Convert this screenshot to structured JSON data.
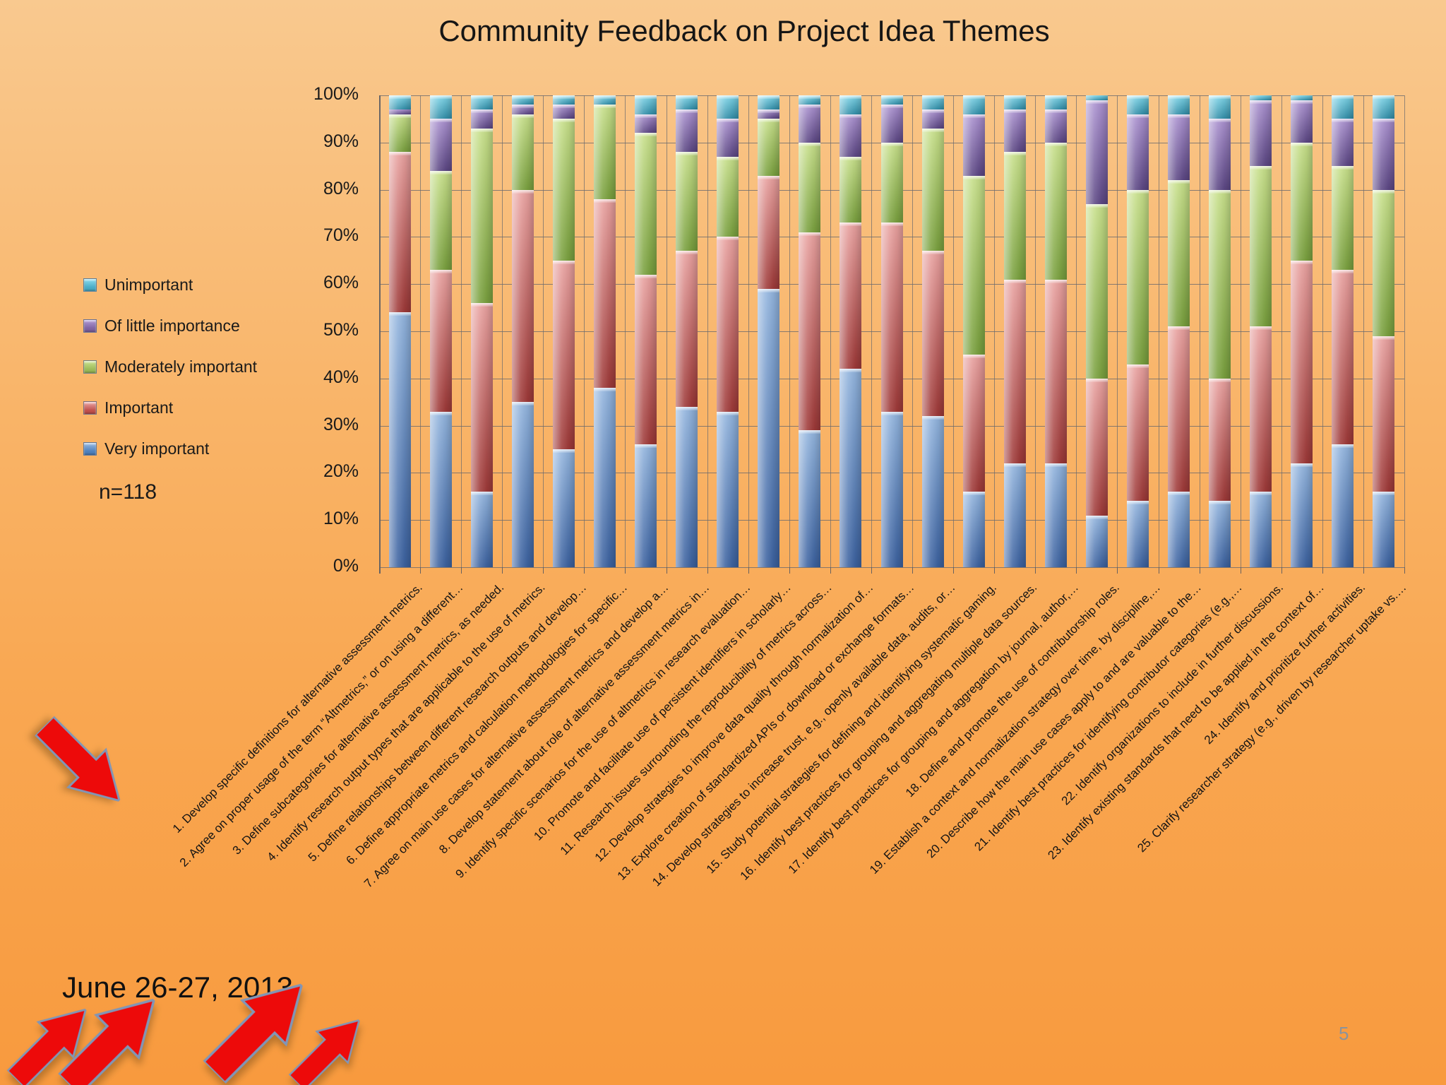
{
  "slide": {
    "title": "Community Feedback on Project Idea Themes",
    "n_label": "n=118",
    "date_label": "June 26-27, 2013",
    "page_number": "5",
    "background_top": "#f9c98f",
    "background_bottom": "#f89a3e"
  },
  "legend": {
    "position": "left",
    "items": [
      {
        "label": "Unimportant",
        "color": "#4BACC6",
        "color_light": "#8ddcee"
      },
      {
        "label": "Of little importance",
        "color": "#8064A2",
        "color_light": "#b29bd6"
      },
      {
        "label": "Moderately important",
        "color": "#9BBB59",
        "color_light": "#cce390"
      },
      {
        "label": "Important",
        "color": "#C0504D",
        "color_light": "#eba7a5"
      },
      {
        "label": "Very important",
        "color": "#4F81BD",
        "color_light": "#9abbe2"
      }
    ]
  },
  "chart_data": {
    "type": "bar",
    "stacked": true,
    "units": "percent",
    "title": "Community Feedback on Project Idea Themes",
    "xlabel": "",
    "ylabel": "",
    "ylim": [
      0,
      100
    ],
    "grid": true,
    "legend_position": "left",
    "sample_size": "n=118",
    "yticks": [
      "0%",
      "10%",
      "20%",
      "30%",
      "40%",
      "50%",
      "60%",
      "70%",
      "80%",
      "90%",
      "100%"
    ],
    "categories": [
      "1. Develop specific definitions for alternative assessment metrics.",
      "2. Agree on proper usage of the term “Altmetrics,” or on using a different…",
      "3. Define subcategories for alternative assessment metrics, as needed.",
      "4. Identify research output types that are applicable to the use of metrics.",
      "5. Define relationships between different research outputs and develop…",
      "6. Define appropriate metrics and calculation methodologies for specific…",
      "7. Agree on main use cases for alternative assessment metrics and develop a…",
      "8. Develop statement about role of alternative assessment metrics in…",
      "9. Identify specific scenarios for the use of altmetrics in research evaluation…",
      "10. Promote and facilitate use of persistent identifiers in scholarly…",
      "11. Research issues surrounding the reproducibility of metrics across…",
      "12. Develop strategies to improve data quality through normalization of…",
      "13. Explore creation of standardized APIs or download or exchange formats…",
      "14. Develop strategies to increase trust, e.g., openly available data, audits, or…",
      "15. Study potential strategies for defining and identifying systematic gaming.",
      "16. Identify best practices for grouping and aggregating multiple data sources.",
      "17. Identify best practices for grouping and aggregation by journal, author,…",
      "18. Define and promote the use of contributorship roles.",
      "19. Establish a context and normalization strategy over time, by discipline,…",
      "20. Describe how the main use cases apply to and are valuable to the…",
      "21. Identify best practices for identifying contributor categories (e.g.,…",
      "22. Identify organizations to include in further discussions.",
      "23. Identify existing standards that need to be applied in the context of…",
      "24. Identify and prioritize further activities.",
      "25. Clarify researcher strategy (e.g., driven by researcher uptake vs.…"
    ],
    "series": [
      {
        "name": "Very important",
        "color": "#4F81BD",
        "gradient": [
          "#93b5de",
          "#3c62a0"
        ],
        "values": [
          54,
          33,
          16,
          35,
          25,
          38,
          26,
          34,
          33,
          59,
          29,
          42,
          33,
          32,
          16,
          22,
          22,
          11,
          14,
          16,
          14,
          16,
          22,
          26,
          16
        ]
      },
      {
        "name": "Important",
        "color": "#C0504D",
        "gradient": [
          "#e9a2a0",
          "#9e3938"
        ],
        "values": [
          34,
          30,
          40,
          45,
          40,
          40,
          36,
          33,
          37,
          24,
          42,
          31,
          40,
          35,
          29,
          39,
          39,
          29,
          29,
          35,
          26,
          35,
          43,
          37,
          33
        ]
      },
      {
        "name": "Moderately important",
        "color": "#9BBB59",
        "gradient": [
          "#c8e08b",
          "#79a03e"
        ],
        "values": [
          8,
          21,
          37,
          16,
          30,
          20,
          30,
          21,
          17,
          12,
          19,
          14,
          17,
          26,
          38,
          27,
          29,
          37,
          37,
          31,
          40,
          34,
          25,
          22,
          31
        ]
      },
      {
        "name": "Of little importance",
        "color": "#8064A2",
        "gradient": [
          "#ac93d1",
          "#5c4784"
        ],
        "values": [
          1,
          11,
          4,
          2,
          3,
          0,
          4,
          9,
          8,
          2,
          8,
          9,
          8,
          4,
          13,
          9,
          7,
          22,
          16,
          14,
          15,
          14,
          9,
          10,
          15
        ]
      },
      {
        "name": "Unimportant",
        "color": "#4BACC6",
        "gradient": [
          "#82d8eb",
          "#338fa9"
        ],
        "values": [
          3,
          5,
          3,
          2,
          2,
          2,
          4,
          3,
          5,
          3,
          2,
          4,
          2,
          3,
          4,
          3,
          3,
          1,
          4,
          4,
          5,
          1,
          1,
          5,
          5
        ]
      }
    ]
  }
}
